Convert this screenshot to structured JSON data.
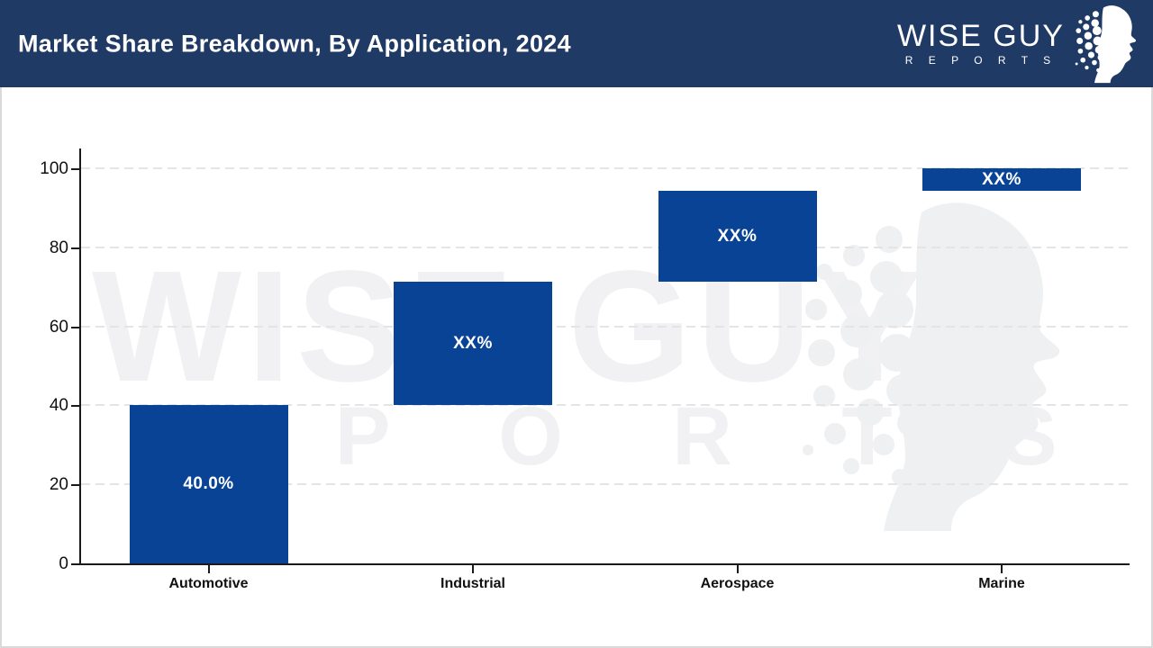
{
  "header": {
    "title": "Market Share Breakdown, By Application, 2024",
    "logo": {
      "line1": "WISE GUY",
      "line2": "R E P O R T S"
    },
    "background_color": "#203a66"
  },
  "watermark": {
    "line1": "WISE GUY",
    "line2": "P O R T S"
  },
  "chart_data": {
    "type": "bar",
    "subtype": "floating-waterfall",
    "title": "Market Share Breakdown, By Application, 2024",
    "categories": [
      "Automotive",
      "Industrial",
      "Aerospace",
      "Marine"
    ],
    "segments": [
      {
        "category": "Automotive",
        "start": 0,
        "end": 40,
        "value": 40.0,
        "label": "40.0%"
      },
      {
        "category": "Industrial",
        "start": 40,
        "end": 71.3,
        "value": 31.3,
        "label": "XX%"
      },
      {
        "category": "Aerospace",
        "start": 71.3,
        "end": 94.2,
        "value": 22.9,
        "label": "XX%"
      },
      {
        "category": "Marine",
        "start": 94.2,
        "end": 100,
        "value": 5.8,
        "label": "XX%"
      }
    ],
    "xlabel": "",
    "ylabel": "",
    "ylim": [
      0,
      105
    ],
    "yticks": [
      0,
      20,
      40,
      60,
      80,
      100
    ],
    "grid": "horizontal-dashed",
    "legend": "none",
    "bar_color": "#094396",
    "bar_label_color": "#ffffff",
    "axis_color": "#1a1a1a"
  }
}
